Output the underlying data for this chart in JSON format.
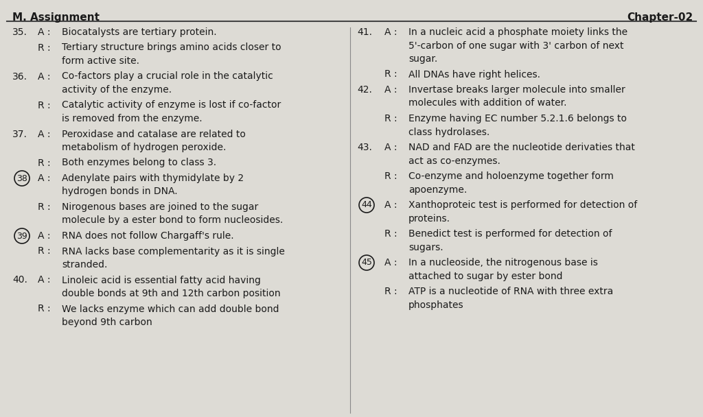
{
  "title_left": "M. Assignment",
  "title_right": "Chapter-02",
  "background_color": "#dddbd5",
  "text_color": "#1a1a1a",
  "font_size": 10.0,
  "left_column": [
    {
      "num": "35.",
      "label": "A :",
      "text": "Biocatalysts are tertiary protein.",
      "circled": false,
      "lines": 1
    },
    {
      "num": "",
      "label": "R :",
      "text": "Tertiary structure brings amino acids closer to",
      "text2": "form active site.",
      "circled": false,
      "lines": 2
    },
    {
      "num": "36.",
      "label": "A :",
      "text": "Co-factors play a crucial role in the catalytic",
      "text2": "activity of the enzyme.",
      "circled": false,
      "lines": 2
    },
    {
      "num": "",
      "label": "R :",
      "text": "Catalytic activity of enzyme is lost if co-factor",
      "text2": "is removed from the enzyme.",
      "circled": false,
      "lines": 2
    },
    {
      "num": "37.",
      "label": "A :",
      "text": "Peroxidase and catalase are related to",
      "text2": "metabolism of hydrogen peroxide.",
      "circled": false,
      "lines": 2
    },
    {
      "num": "",
      "label": "R :",
      "text": "Both enzymes belong to class 3.",
      "circled": false,
      "lines": 1
    },
    {
      "num": "38",
      "label": "A :",
      "text": "Adenylate pairs with thymidylate by 2",
      "text2": "hydrogen bonds in DNA.",
      "circled": true,
      "lines": 2
    },
    {
      "num": "",
      "label": "R :",
      "text": "Nirogenous bases are joined to the sugar",
      "text2": "molecule by a ester bond to form nucleosides.",
      "circled": false,
      "lines": 2
    },
    {
      "num": "39",
      "label": "A :",
      "text": "RNA does not follow Chargaff's rule.",
      "circled": true,
      "lines": 1
    },
    {
      "num": "",
      "label": "R :",
      "text": "RNA lacks base complementarity as it is single",
      "text2": "stranded.",
      "circled": false,
      "lines": 2
    },
    {
      "num": "40.",
      "label": "A :",
      "text": "Linoleic acid is essential fatty acid having",
      "text2": "double bonds at 9th and 12th carbon position",
      "circled": false,
      "lines": 2
    },
    {
      "num": "",
      "label": "R :",
      "text": "We lacks enzyme which can add double bond",
      "text2": "beyond 9th carbon",
      "circled": false,
      "lines": 2
    }
  ],
  "right_column": [
    {
      "num": "41.",
      "label": "A :",
      "text": "In a nucleic acid a phosphate moiety links the",
      "text2": "5'-carbon of one sugar with 3' carbon of next",
      "text3": "sugar.",
      "circled": false,
      "lines": 3
    },
    {
      "num": "",
      "label": "R :",
      "text": "All DNAs have right helices.",
      "circled": false,
      "lines": 1
    },
    {
      "num": "42.",
      "label": "A :",
      "text": "Invertase breaks larger molecule into smaller",
      "text2": "molecules with addition of water.",
      "circled": false,
      "lines": 2
    },
    {
      "num": "",
      "label": "R :",
      "text": "Enzyme having EC number 5.2.1.6 belongs to",
      "text2": "class hydrolases.",
      "circled": false,
      "lines": 2
    },
    {
      "num": "43.",
      "label": "A :",
      "text": "NAD and FAD are the nucleotide derivaties that",
      "text2": "act as co-enzymes.",
      "circled": false,
      "lines": 2
    },
    {
      "num": "",
      "label": "R :",
      "text": "Co-enzyme and holoenzyme together form",
      "text2": "apoenzyme.",
      "circled": false,
      "lines": 2
    },
    {
      "num": "44",
      "label": "A :",
      "text": "Xanthoproteic test is performed for detection of",
      "text2": "proteins.",
      "circled": true,
      "lines": 2
    },
    {
      "num": "",
      "label": "R :",
      "text": "Benedict test is performed for detection of",
      "text2": "sugars.",
      "circled": false,
      "lines": 2
    },
    {
      "num": "45",
      "label": "A :",
      "text": "In a nucleoside, the nitrogenous base is",
      "text2": "attached to sugar by ester bond",
      "circled": true,
      "lines": 2
    },
    {
      "num": "",
      "label": "R :",
      "text": "ATP is a nucleotide of RNA with three extra",
      "text2": "phosphates",
      "circled": false,
      "lines": 2
    }
  ]
}
